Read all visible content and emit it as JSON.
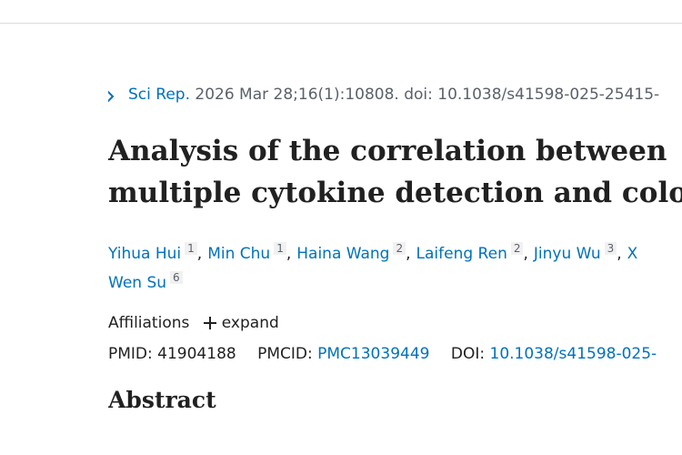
{
  "citation": {
    "journal": "Sci Rep.",
    "details": "2026 Mar 28;16(1):10808. doi: 10.1038/s41598-025-25415-"
  },
  "title": {
    "line1": "Analysis of the correlation between",
    "line2": "multiple cytokine detection and colo"
  },
  "authors": {
    "separator": ",",
    "line1": [
      {
        "name": "Yihua Hui",
        "affiliation": "1"
      },
      {
        "name": "Min Chu",
        "affiliation": "1"
      },
      {
        "name": "Haina Wang",
        "affiliation": "2"
      },
      {
        "name": "Laifeng Ren",
        "affiliation": "2"
      },
      {
        "name": "Jinyu Wu",
        "affiliation": "3"
      },
      {
        "name": "X"
      }
    ],
    "line2": [
      {
        "name": "Wen Su",
        "affiliation": "6"
      }
    ]
  },
  "affiliations": {
    "label": "Affiliations",
    "action": "expand"
  },
  "identifiers": {
    "pmid_label": "PMID:",
    "pmid": "41904188",
    "pmcid_label": "PMCID:",
    "pmcid": "PMC13039449",
    "doi_label": "DOI:",
    "doi": "10.1038/s41598-025-"
  },
  "abstract": {
    "heading": "Abstract"
  }
}
